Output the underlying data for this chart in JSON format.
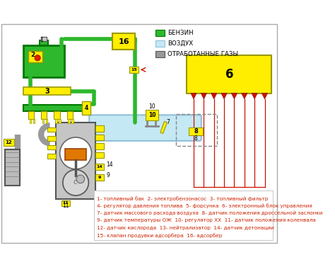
{
  "fuel_color": "#2db82d",
  "fuel_dark": "#007700",
  "air_color": "#c5e8f5",
  "air_border": "#90c0d8",
  "exhaust_color": "#999999",
  "yellow": "#ffee00",
  "yellow_border": "#999900",
  "red_arrow": "#cc1100",
  "red_text": "#cc2200",
  "wire_color": "#cc1100",
  "legend_items": [
    {
      "label": "БЕНЗИН",
      "color": "#2db82d",
      "border": "#007700"
    },
    {
      "label": "ВОЗДУХ",
      "color": "#c5e8f5",
      "border": "#90c0d8"
    },
    {
      "label": "ОТРАБОТАННЫЕ ГАЗЫ",
      "color": "#999999",
      "border": "#555555"
    }
  ],
  "caption_lines": [
    "1- топливный бак  2- электробензонасос  3- топливный фильтр",
    "4- регулятор давления топлива  5- форсунка  6- электронный блок управления",
    "7- датчик массового расхода воздуха  8- датчик положения дроссельной заслонки",
    "9- датчик температуры ОЖ  10- регулятор ХХ  11- датчик положения коленвала",
    "12- датчик кислорода  13- нейтрализатор  14- датчик детонации",
    "15- клапан продувки адсорбера  16- адсорбер"
  ]
}
